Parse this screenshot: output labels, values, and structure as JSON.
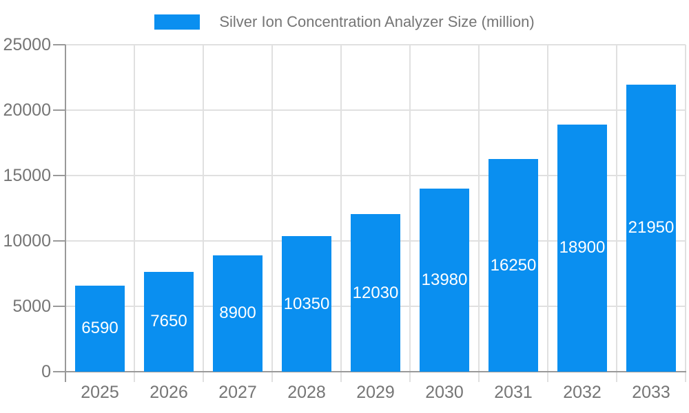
{
  "chart_data": {
    "type": "bar",
    "title": "Silver Ion Concentration Analyzer Size (million)",
    "categories": [
      "2025",
      "2026",
      "2027",
      "2028",
      "2029",
      "2030",
      "2031",
      "2032",
      "2033"
    ],
    "values": [
      6590,
      7650,
      8900,
      10350,
      12030,
      13980,
      16250,
      18900,
      21950
    ],
    "ylim": [
      0,
      25000
    ],
    "yticks": [
      0,
      5000,
      10000,
      15000,
      20000,
      25000
    ],
    "xlabel": "",
    "ylabel": "",
    "grid": true,
    "legend_position": "top-center",
    "colors": {
      "bar": "#0a8ff0",
      "bar_value_label": "#ffffff",
      "axis_text": "#757575",
      "grid_line": "#e0e0e0",
      "axis_line": "#999999",
      "background": "#ffffff"
    }
  }
}
